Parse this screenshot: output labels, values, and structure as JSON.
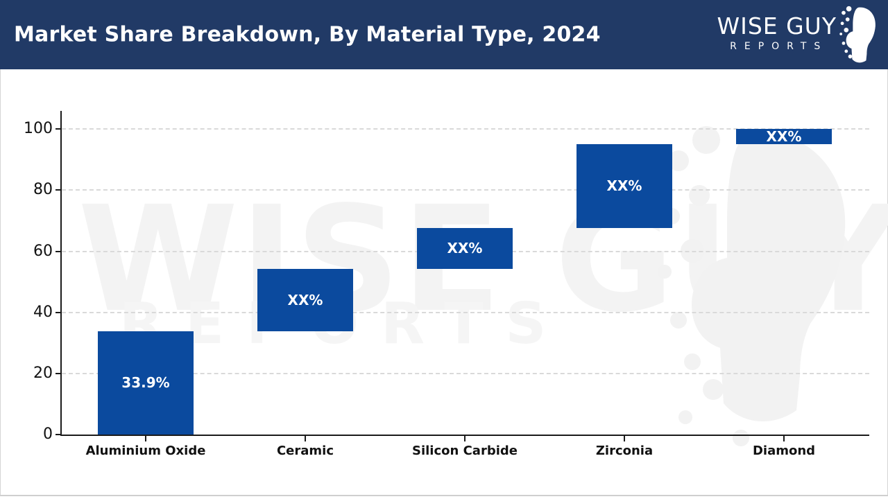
{
  "header": {
    "title": "Market Share Breakdown, By Material Type, 2024",
    "brand_name": "WISE GUY",
    "brand_sub": "REPORTS",
    "bg_color": "#213a66"
  },
  "watermark": {
    "word": "WISE GUY",
    "sub": "REPORTS"
  },
  "chart_data": {
    "type": "bar",
    "subtype": "waterfall",
    "title": "Market Share Breakdown, By Material Type, 2024",
    "xlabel": "",
    "ylabel": "",
    "categories": [
      "Aluminium Oxide",
      "Ceramic",
      "Silicon Carbide",
      "Zirconia",
      "Diamond"
    ],
    "segments": [
      {
        "category": "Aluminium Oxide",
        "start": 0,
        "end": 33.9,
        "label": "33.9%"
      },
      {
        "category": "Ceramic",
        "start": 33.9,
        "end": 54.2,
        "label": "XX%"
      },
      {
        "category": "Silicon Carbide",
        "start": 54.2,
        "end": 67.7,
        "label": "XX%"
      },
      {
        "category": "Zirconia",
        "start": 67.7,
        "end": 95.1,
        "label": "XX%"
      },
      {
        "category": "Diamond",
        "start": 95.1,
        "end": 100,
        "label": "XX%"
      }
    ],
    "segment_heights": [
      33.9,
      20.3,
      13.5,
      27.4,
      4.9
    ],
    "y_ticks": [
      0,
      20,
      40,
      60,
      80,
      100
    ],
    "ylim": [
      0,
      106
    ],
    "grid": {
      "horizontal": true,
      "style": "dashed",
      "color": "#d9d9d9"
    },
    "legend": "none",
    "bar_color": "#0b4a9e",
    "bar_label_color": "#ffffff",
    "axis_color": "#1a1a1a"
  }
}
